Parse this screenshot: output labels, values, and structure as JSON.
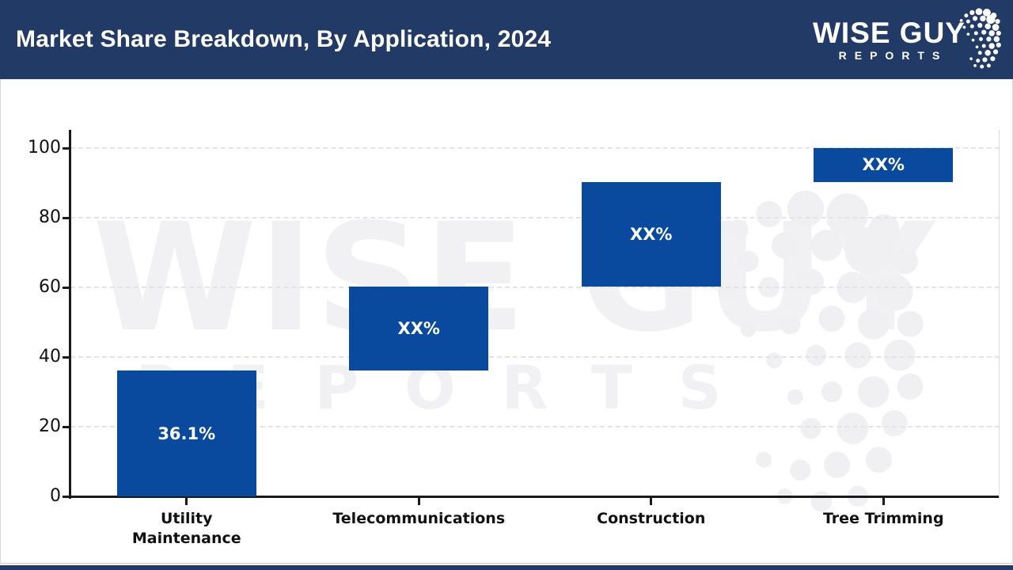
{
  "header": {
    "title": "Market Share Breakdown, By Application, 2024",
    "logo": {
      "name_top": "WISE GUY",
      "name_bottom": "REPORTS"
    }
  },
  "watermark": {
    "line1": "WISE GUY",
    "line2": "REPORTS"
  },
  "chart_data": {
    "type": "bar",
    "subtype": "floating-waterfall",
    "title": "Market Share Breakdown, By Application, 2024",
    "categories": [
      "Utility Maintenance",
      "Telecommunications",
      "Construction",
      "Tree Trimming"
    ],
    "category_display": [
      "Utility\nMaintenance",
      "Telecommunications",
      "Construction",
      "Tree Trimming"
    ],
    "series": [
      {
        "name": "Market Share",
        "segments": [
          {
            "category": "Utility Maintenance",
            "from": 0,
            "to": 36.1,
            "label": "36.1%"
          },
          {
            "category": "Telecommunications",
            "from": 36.1,
            "to": 60.2,
            "label": "XX%"
          },
          {
            "category": "Construction",
            "from": 60.2,
            "to": 90.3,
            "label": "XX%"
          },
          {
            "category": "Tree Trimming",
            "from": 90.3,
            "to": 100.0,
            "label": "XX%"
          }
        ]
      }
    ],
    "xlabel": "",
    "ylabel": "",
    "yticks": [
      0,
      20,
      40,
      60,
      80,
      100
    ],
    "ylim": [
      0,
      105
    ],
    "grid": "horizontal-dashed",
    "legend": "none",
    "masked_value_label": "XX%",
    "bar_color": "#0a4a9e",
    "bar_label_color": "#ffffff"
  },
  "colors": {
    "header_bg": "#223a66",
    "footer_bg": "#223a66",
    "bar": "#0a4a9e",
    "axis": "#1a1a1a",
    "grid": "#e4e4e4",
    "watermark": "#f1f1f3",
    "chart_border": "#cccccc"
  }
}
